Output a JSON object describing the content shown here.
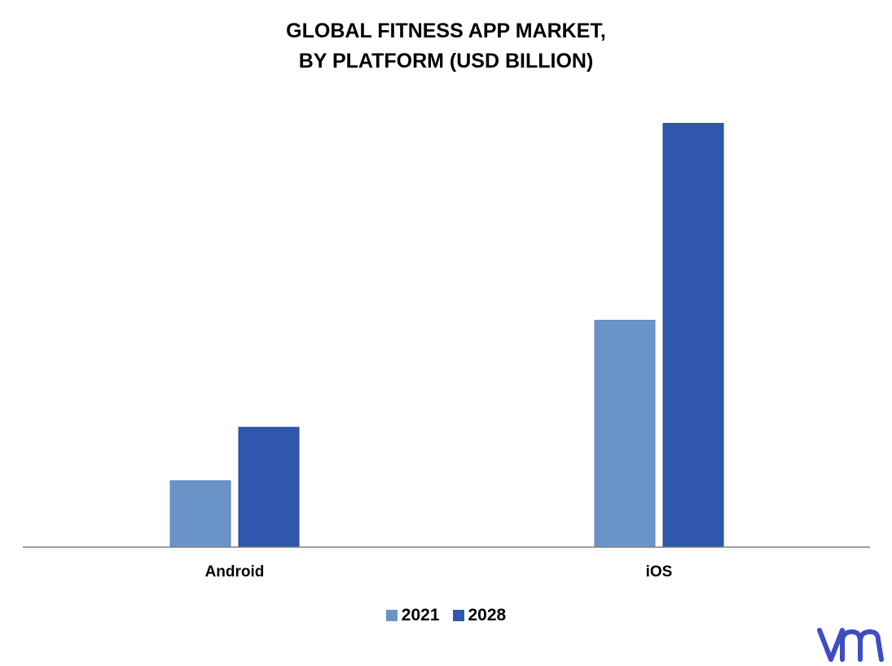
{
  "colors": {
    "series_2021": "#6a94c8",
    "series_2021_edge": "#5a84ba",
    "series_2028": "#2e57ad",
    "series_2028_edge": "#23479a",
    "axis": "#7f7f7f",
    "logo": "#3e4dc4"
  },
  "chart_data": {
    "type": "bar",
    "title_lines": [
      "GLOBAL FITNESS APP MARKET,",
      "BY PLATFORM (USD BILLION)"
    ],
    "categories": [
      "Android",
      "iOS"
    ],
    "series": [
      {
        "name": "2021",
        "values": [
          1.55,
          5.3
        ]
      },
      {
        "name": "2028",
        "values": [
          2.8,
          9.9
        ]
      }
    ],
    "ylim": [
      0,
      10.5
    ],
    "xlabel": "",
    "ylabel": "",
    "grid": false,
    "legend": "bottom"
  },
  "logo": {
    "icon": "vmr-logo-icon"
  }
}
